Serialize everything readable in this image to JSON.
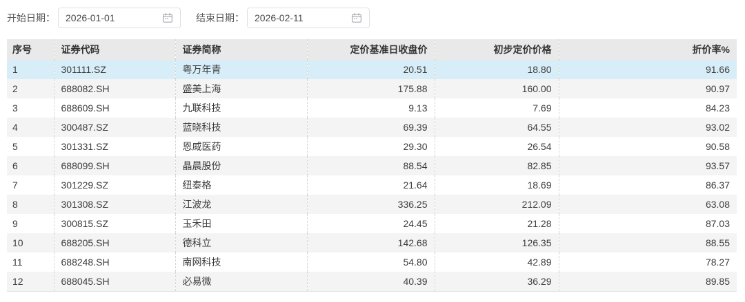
{
  "filters": {
    "start_label": "开始日期：",
    "start_value": "2026-01-01",
    "end_label": "结束日期：",
    "end_value": "2026-02-11"
  },
  "table": {
    "columns": [
      {
        "key": "index",
        "label": "序号",
        "align": "left"
      },
      {
        "key": "code",
        "label": "证券代码",
        "align": "left"
      },
      {
        "key": "name",
        "label": "证券简称",
        "align": "left"
      },
      {
        "key": "close",
        "label": "定价基准日收盘价",
        "align": "right"
      },
      {
        "key": "price",
        "label": "初步定价价格",
        "align": "right"
      },
      {
        "key": "discount",
        "label": "折价率%",
        "align": "right"
      }
    ],
    "rows": [
      [
        "1",
        "301111.SZ",
        "粤万年青",
        "20.51",
        "18.80",
        "91.66"
      ],
      [
        "2",
        "688082.SH",
        "盛美上海",
        "175.88",
        "160.00",
        "90.97"
      ],
      [
        "3",
        "688609.SH",
        "九联科技",
        "9.13",
        "7.69",
        "84.23"
      ],
      [
        "4",
        "300487.SZ",
        "蓝晓科技",
        "69.39",
        "64.55",
        "93.02"
      ],
      [
        "5",
        "301331.SZ",
        "恩威医药",
        "29.30",
        "26.54",
        "90.58"
      ],
      [
        "6",
        "688099.SH",
        "晶晨股份",
        "88.54",
        "82.85",
        "93.57"
      ],
      [
        "7",
        "301229.SZ",
        "纽泰格",
        "21.64",
        "18.69",
        "86.37"
      ],
      [
        "8",
        "301308.SZ",
        "江波龙",
        "336.25",
        "212.09",
        "63.08"
      ],
      [
        "9",
        "300815.SZ",
        "玉禾田",
        "24.45",
        "21.28",
        "87.03"
      ],
      [
        "10",
        "688205.SH",
        "德科立",
        "142.68",
        "126.35",
        "88.55"
      ],
      [
        "11",
        "688248.SH",
        "南网科技",
        "54.80",
        "42.89",
        "78.27"
      ],
      [
        "12",
        "688045.SH",
        "必易微",
        "40.39",
        "36.29",
        "89.85"
      ]
    ],
    "highlighted_row_index": 0
  },
  "colors": {
    "header_bg": "#e9e9e9",
    "row_stripe": "#f4f4f5",
    "row_highlight": "#d7eef8",
    "table_bottom_border": "#e0e0e0",
    "column_separator": "#d6d6d6",
    "input_border": "#dcdfe6",
    "icon_gray": "#a8abb2"
  },
  "icons": {
    "calendar": "calendar-icon"
  }
}
